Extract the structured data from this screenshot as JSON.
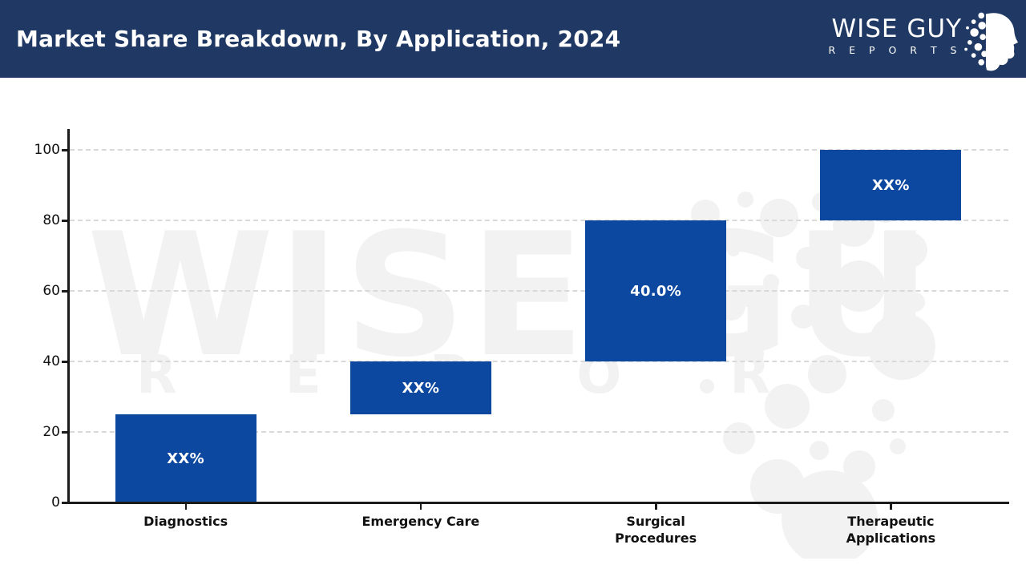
{
  "header": {
    "title": "Market Share Breakdown, By Application, 2024",
    "logo_line1": "WISE GUY",
    "logo_line2": "R E P O R T S"
  },
  "watermark": {
    "line1": "WISE GU",
    "line2": "R E P O R"
  },
  "colors": {
    "header_bg": "#1f3864",
    "bar": "#0d48a0",
    "bar_label": "#ffffff",
    "axis": "#1a1a1a",
    "grid": "#d9d9d9",
    "watermark": "#f2f2f2",
    "frame": "#d6d6d6"
  },
  "chart_data": {
    "type": "bar",
    "subtype": "waterfall",
    "title": "Market Share Breakdown, By Application, 2024",
    "categories": [
      "Diagnostics",
      "Emergency Care",
      "Surgical Procedures",
      "Therapeutic Applications"
    ],
    "series": [
      {
        "name": "Market Share",
        "segments": [
          {
            "category": "Diagnostics",
            "start": 0,
            "end": 25,
            "value": 25,
            "label": "XX%"
          },
          {
            "category": "Emergency Care",
            "start": 25,
            "end": 40,
            "value": 15,
            "label": "XX%"
          },
          {
            "category": "Surgical Procedures",
            "start": 40,
            "end": 80,
            "value": 40,
            "label": "40.0%"
          },
          {
            "category": "Therapeutic Applications",
            "start": 80,
            "end": 100,
            "value": 20,
            "label": "XX%"
          }
        ]
      }
    ],
    "values": [
      25,
      15,
      40,
      20
    ],
    "ylim": [
      0,
      100
    ],
    "yticks": [
      0,
      20,
      40,
      60,
      80,
      100
    ],
    "xlabel": "",
    "ylabel": "",
    "grid": "horizontal-dashed",
    "legend": "none",
    "bar_color": "#0d48a0",
    "label_color": "#ffffff"
  }
}
